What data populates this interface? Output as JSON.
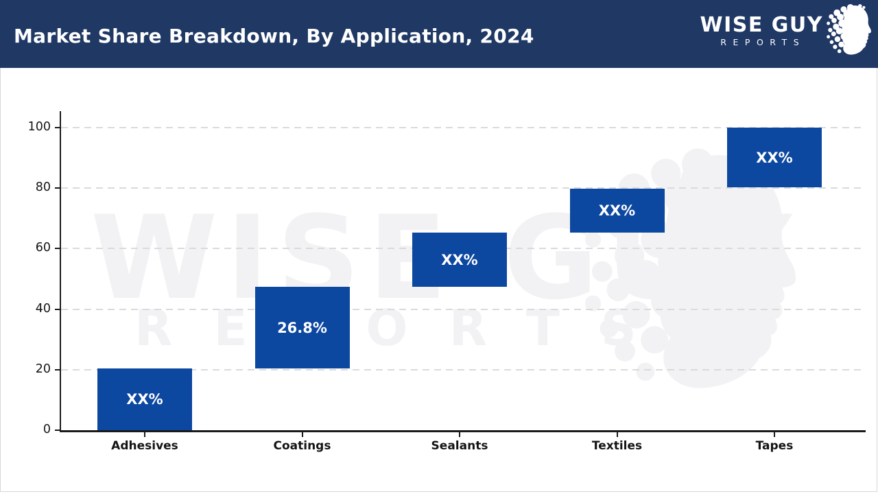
{
  "header": {
    "title": "Market Share Breakdown, By Application, 2024",
    "logo": {
      "brand": "WISE GUY",
      "sub": "REPORTS"
    }
  },
  "watermark": {
    "brand": "WISE GUY",
    "sub": "REPORTS"
  },
  "colors": {
    "header_bg": "#1f3864",
    "bar": "#0c47a0",
    "bar_label": "#ffffff",
    "grid": "#dadada",
    "axis": "#1a1a1a",
    "watermark": "#f2f2f4"
  },
  "chart_data": {
    "type": "bar",
    "subtype": "waterfall",
    "title": "Market Share Breakdown, By Application, 2024",
    "categories": [
      "Adhesives",
      "Coatings",
      "Sealants",
      "Textiles",
      "Tapes"
    ],
    "bars": [
      {
        "category": "Adhesives",
        "start": 0,
        "end": 20.5,
        "label": "XX%"
      },
      {
        "category": "Coatings",
        "start": 20.5,
        "end": 47.3,
        "label": "26.8%"
      },
      {
        "category": "Sealants",
        "start": 47.3,
        "end": 65.2,
        "label": "XX%"
      },
      {
        "category": "Textiles",
        "start": 65.2,
        "end": 79.8,
        "label": "XX%"
      },
      {
        "category": "Tapes",
        "start": 80.2,
        "end": 100,
        "label": "XX%"
      }
    ],
    "yticks": [
      0,
      20,
      40,
      60,
      80,
      100
    ],
    "ylim": [
      0,
      105
    ],
    "xlabel": "",
    "ylabel": "",
    "grid": "dashed-horizontal",
    "legend": "none"
  }
}
